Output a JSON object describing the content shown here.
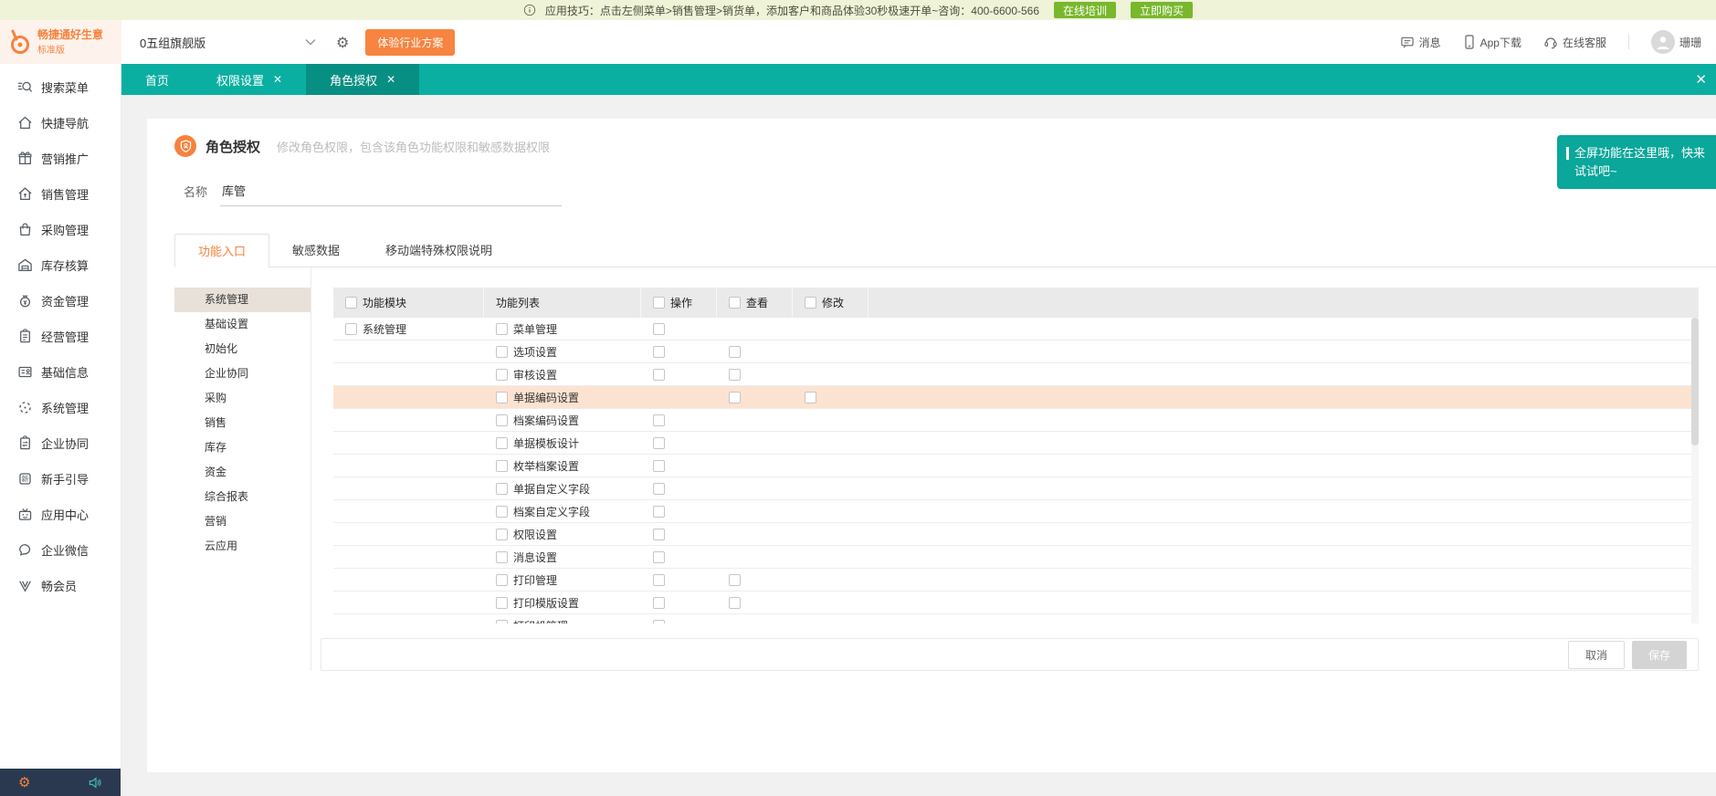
{
  "promo_bar": {
    "text": "应用技巧：点击左侧菜单>销售管理>销货单，添加客户和商品体验30秒极速开单~咨询：400-6600-566",
    "buttons": [
      "在线培训",
      "立即购买"
    ]
  },
  "header": {
    "brand": "畅捷通好生意",
    "edition": "标准版",
    "org_select": "0五组旗舰版",
    "trial_button": "体验行业方案",
    "messages": "消息",
    "app_download": "App下载",
    "support": "在线客服",
    "username": "珊珊"
  },
  "tabbar": {
    "tabs": [
      {
        "label": "首页",
        "closable": false,
        "active": false
      },
      {
        "label": "权限设置",
        "closable": true,
        "active": false
      },
      {
        "label": "角色授权",
        "closable": true,
        "active": true
      }
    ]
  },
  "sidebar": {
    "items": [
      {
        "icon": "search-icon",
        "label": "搜索菜单"
      },
      {
        "icon": "home-icon",
        "label": "快捷导航"
      },
      {
        "icon": "gift-icon",
        "label": "营销推广"
      },
      {
        "icon": "sales-house-icon",
        "label": "销售管理"
      },
      {
        "icon": "shopping-bag-icon",
        "label": "采购管理"
      },
      {
        "icon": "warehouse-icon",
        "label": "库存核算"
      },
      {
        "icon": "money-bag-icon",
        "label": "资金管理"
      },
      {
        "icon": "clipboard-icon",
        "label": "经营管理"
      },
      {
        "icon": "id-card-icon",
        "label": "基础信息"
      },
      {
        "icon": "system-circle-icon",
        "label": "系统管理"
      },
      {
        "icon": "collab-clipboard-icon",
        "label": "企业协同"
      },
      {
        "icon": "newbie-guide-icon",
        "label": "新手引导"
      },
      {
        "icon": "app-tv-icon",
        "label": "应用中心"
      },
      {
        "icon": "wechat-chat-icon",
        "label": "企业微信"
      },
      {
        "icon": "member-v-icon",
        "label": "畅会员"
      }
    ]
  },
  "page": {
    "title": "角色授权",
    "subtitle": "修改角色权限，包含该角色功能权限和敏感数据权限",
    "name_label": "名称",
    "name_value": "库管",
    "toast": "全屏功能在这里哦，快来试试吧~"
  },
  "content_tabs": [
    "功能入口",
    "敏感数据",
    "移动端特殊权限说明"
  ],
  "submenu": {
    "active_index": 0,
    "items": [
      "系统管理",
      "基础设置",
      "初始化",
      "企业协同",
      "采购",
      "销售",
      "库存",
      "资金",
      "综合报表",
      "营销",
      "云应用"
    ]
  },
  "table": {
    "headers": {
      "module": "功能模块",
      "feature": "功能列表",
      "op": "操作",
      "view": "查看",
      "edit": "修改"
    },
    "rows": [
      {
        "module": "系统管理",
        "feature": "菜单管理",
        "op": true,
        "view": false,
        "edit": false,
        "highlight": false
      },
      {
        "module": "",
        "feature": "选项设置",
        "op": true,
        "view": true,
        "edit": false,
        "highlight": false
      },
      {
        "module": "",
        "feature": "审核设置",
        "op": true,
        "view": true,
        "edit": false,
        "highlight": false
      },
      {
        "module": "",
        "feature": "单据编码设置",
        "op": false,
        "view": true,
        "edit": true,
        "highlight": true
      },
      {
        "module": "",
        "feature": "档案编码设置",
        "op": true,
        "view": false,
        "edit": false,
        "highlight": false
      },
      {
        "module": "",
        "feature": "单据模板设计",
        "op": true,
        "view": false,
        "edit": false,
        "highlight": false
      },
      {
        "module": "",
        "feature": "枚举档案设置",
        "op": true,
        "view": false,
        "edit": false,
        "highlight": false
      },
      {
        "module": "",
        "feature": "单据自定义字段",
        "op": true,
        "view": false,
        "edit": false,
        "highlight": false
      },
      {
        "module": "",
        "feature": "档案自定义字段",
        "op": true,
        "view": false,
        "edit": false,
        "highlight": false
      },
      {
        "module": "",
        "feature": "权限设置",
        "op": true,
        "view": false,
        "edit": false,
        "highlight": false
      },
      {
        "module": "",
        "feature": "消息设置",
        "op": true,
        "view": false,
        "edit": false,
        "highlight": false
      },
      {
        "module": "",
        "feature": "打印管理",
        "op": true,
        "view": true,
        "edit": false,
        "highlight": false
      },
      {
        "module": "",
        "feature": "打印模版设置",
        "op": true,
        "view": true,
        "edit": false,
        "highlight": false
      },
      {
        "module": "",
        "feature": "打印机管理",
        "op": true,
        "view": false,
        "edit": false,
        "highlight": false
      }
    ]
  },
  "footer": {
    "cancel": "取消",
    "save": "保存"
  },
  "colors": {
    "teal": "#0bafa1",
    "teal_active_tab": "#078f83",
    "toast_teal": "#0aa79a",
    "orange": "#f7823e",
    "promo_green": "#79b72c",
    "promo_bg": "#eff3d8",
    "row_highlight": "#fce3d1",
    "submenu_active": "#e8e1da",
    "header_gray": "#eaeaea"
  }
}
